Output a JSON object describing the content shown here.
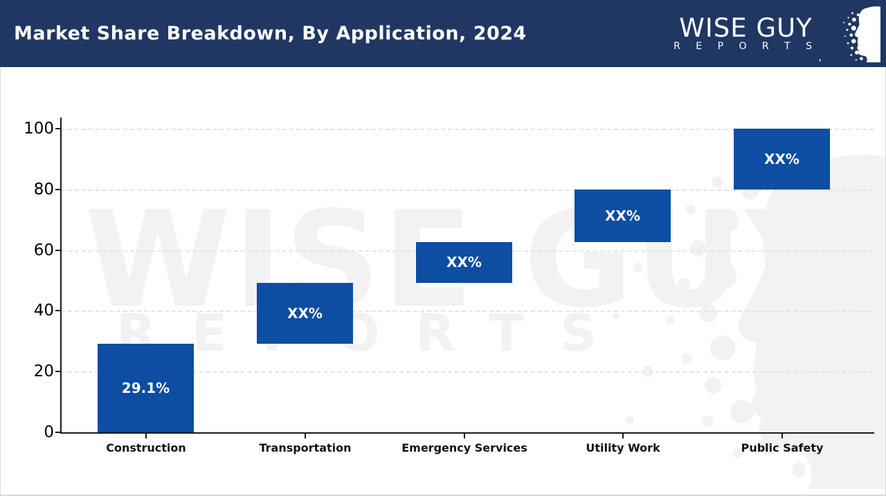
{
  "header": {
    "title": "Market Share Breakdown, By Application, 2024",
    "bg_color": "#203764",
    "logo": {
      "line1": "WISE GUY",
      "line2": "R E P O R T S"
    }
  },
  "watermark": {
    "line1": "WISE GUY",
    "line2": "REPORTS"
  },
  "chart_data": {
    "type": "bar",
    "subtype": "waterfall",
    "title": "Market Share Breakdown, By Application, 2024",
    "categories": [
      "Construction",
      "Transportation",
      "Emergency Services",
      "Utility Work",
      "Public Safety"
    ],
    "segments": [
      {
        "label": "Construction",
        "start": 0,
        "end": 29.1,
        "value_label": "29.1%"
      },
      {
        "label": "Transportation",
        "start": 29.1,
        "end": 49.2,
        "value_label": "XX%"
      },
      {
        "label": "Emergency Services",
        "start": 49.2,
        "end": 62.7,
        "value_label": "XX%"
      },
      {
        "label": "Utility Work",
        "start": 62.7,
        "end": 80.0,
        "value_label": "XX%"
      },
      {
        "label": "Public Safety",
        "start": 80.0,
        "end": 100,
        "value_label": "XX%"
      }
    ],
    "y_ticks": [
      0,
      20,
      40,
      60,
      80,
      100
    ],
    "ylim": [
      0,
      100
    ],
    "xlabel": "",
    "ylabel": "",
    "grid": "horizontal-dashed",
    "legend": "none",
    "bar_color": "#0d4da2",
    "bar_label_color": "#ffffff",
    "axis_color": "#1a1a1a"
  }
}
